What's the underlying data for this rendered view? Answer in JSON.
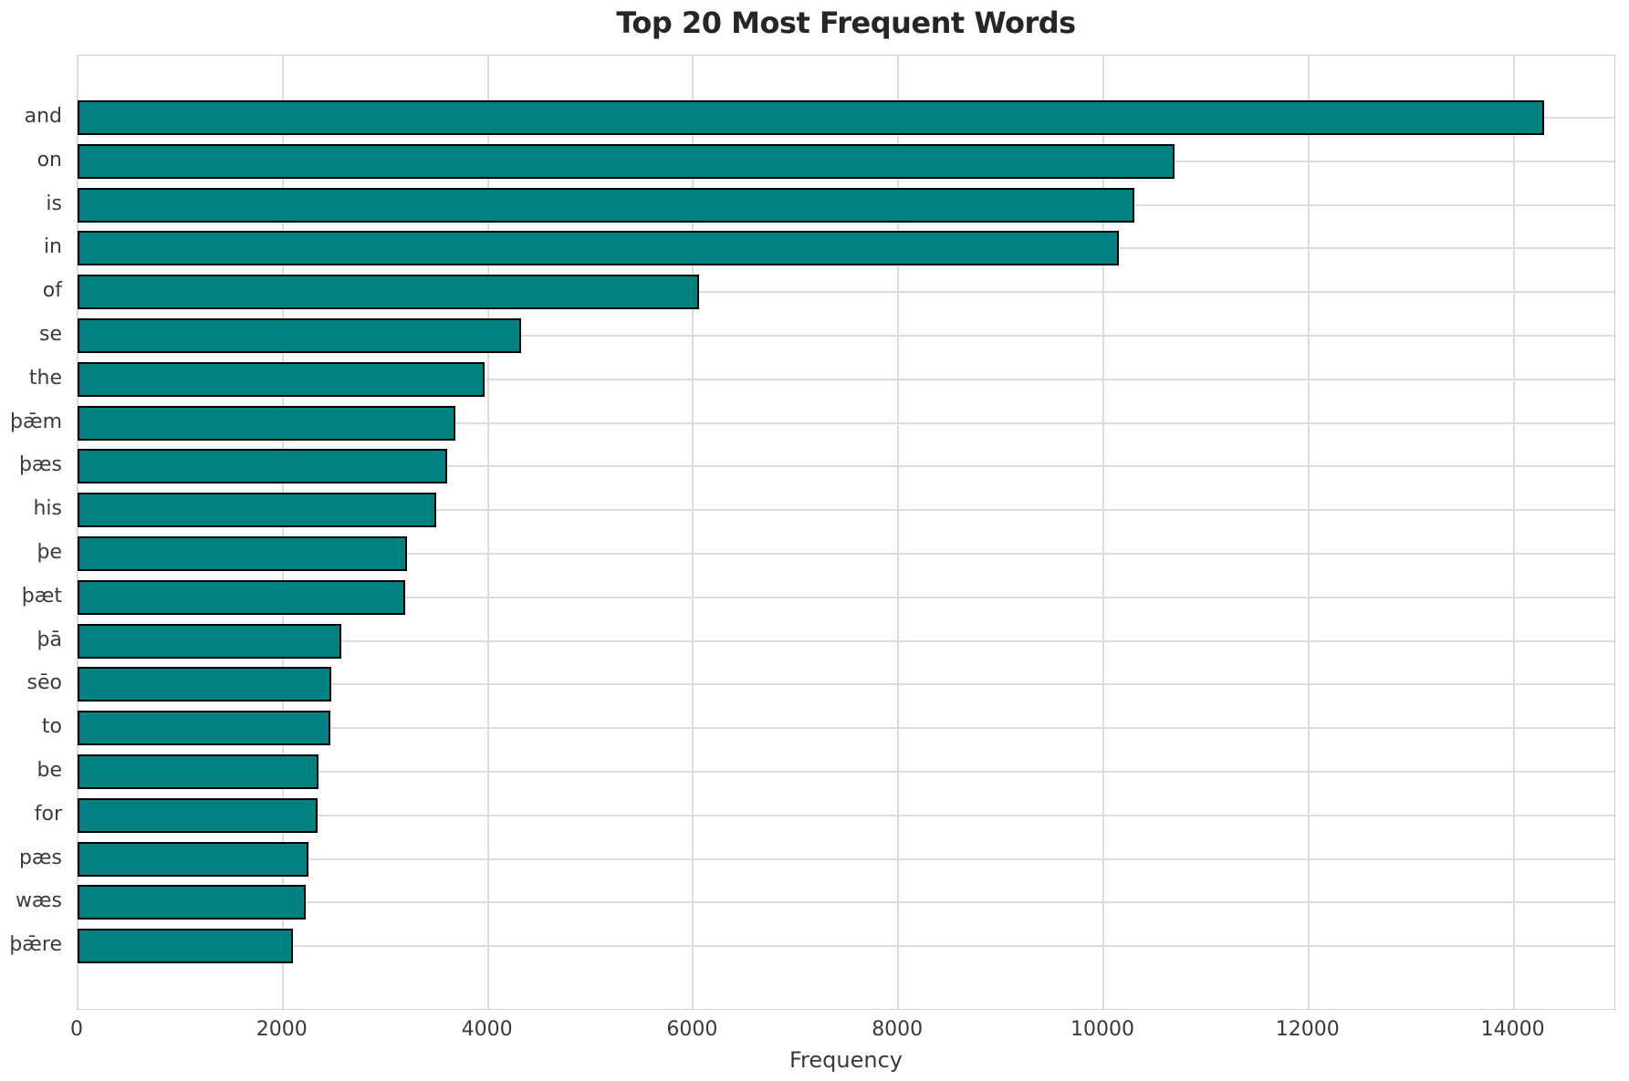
{
  "title": "Top 20 Most Frequent Words",
  "chart_data": {
    "type": "bar",
    "orientation": "horizontal",
    "title": "Top 20 Most Frequent Words",
    "xlabel": "Frequency",
    "ylabel": "",
    "categories": [
      "and",
      "on",
      "is",
      "in",
      "of",
      "se",
      "the",
      "þǣm",
      "þæs",
      "his",
      "þe",
      "þæt",
      "þā",
      "sēo",
      "to",
      "be",
      "for",
      "pæs",
      "wæs",
      "þǣre"
    ],
    "values": [
      14300,
      10690,
      10300,
      10150,
      6060,
      4320,
      3970,
      3680,
      3600,
      3500,
      3210,
      3190,
      2570,
      2470,
      2460,
      2350,
      2340,
      2250,
      2220,
      2100
    ],
    "xlim": [
      0,
      15000
    ],
    "xticks": [
      0,
      2000,
      4000,
      6000,
      8000,
      10000,
      12000,
      14000
    ],
    "grid": true,
    "legend": false,
    "colors": {
      "bar_fill": "#008080",
      "bar_edge": "#000000",
      "grid_line": "#dcdcdc",
      "spine": "#d0d0d0",
      "tick_text": "#3a3a3a",
      "title_text": "#262626",
      "background": "#ffffff"
    }
  }
}
